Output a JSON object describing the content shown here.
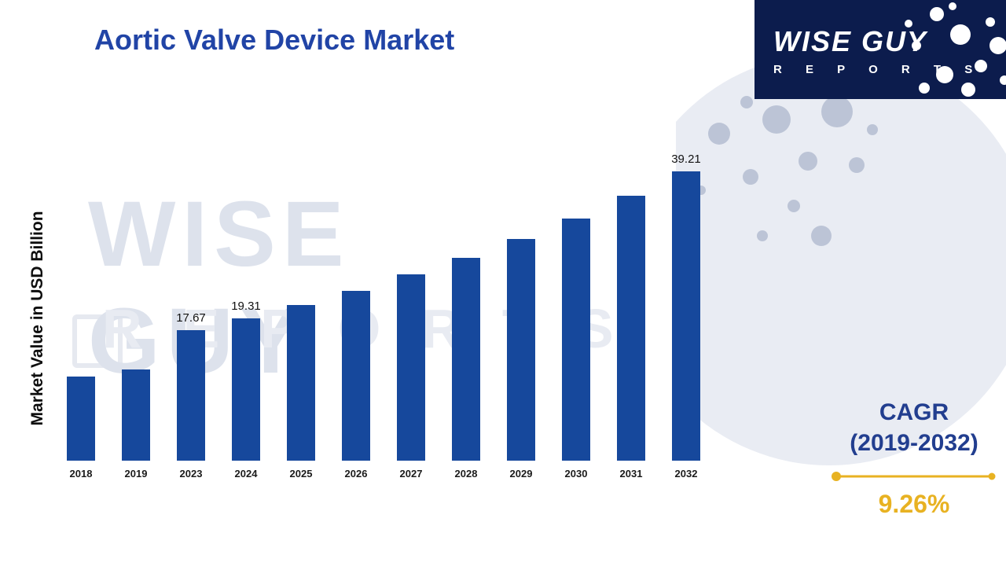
{
  "title": "Aortic Valve Device Market",
  "y_axis_label": "Market Value in USD Billion",
  "logo": {
    "line1": "WISE GUY",
    "line2": "R E P O R T S"
  },
  "watermark": {
    "line1": "WISE GUY",
    "line2": "REPORTS"
  },
  "cagr": {
    "label": "CAGR",
    "range": "(2019-2032)",
    "value": "9.26%"
  },
  "colors": {
    "bar": "#16489c",
    "title": "#2144a6",
    "navy": "#0c1c4d",
    "gold": "#e8b222",
    "cagr_text": "#223e8f"
  },
  "chart_data": {
    "type": "bar",
    "title": "Aortic Valve Device Market",
    "xlabel": "",
    "ylabel": "Market Value in USD Billion",
    "categories": [
      "2018",
      "2019",
      "2023",
      "2024",
      "2025",
      "2026",
      "2027",
      "2028",
      "2029",
      "2030",
      "2031",
      "2032"
    ],
    "values": [
      11.35,
      12.4,
      17.67,
      19.31,
      21.1,
      23.05,
      25.2,
      27.5,
      30.05,
      32.8,
      35.9,
      39.21
    ],
    "point_labels": [
      "",
      "",
      "17.67",
      "19.31",
      "",
      "",
      "",
      "",
      "",
      "",
      "",
      "39.21"
    ],
    "ylim": [
      0,
      40
    ],
    "grid": false,
    "legend": "none",
    "annotations": [
      "CAGR (2019-2032) 9.26%"
    ]
  }
}
